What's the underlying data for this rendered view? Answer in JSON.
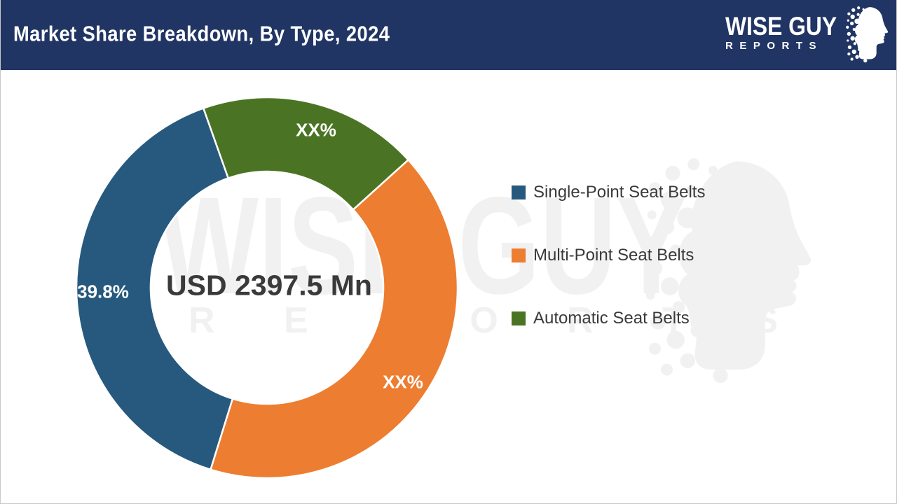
{
  "header": {
    "title": "Market Share Breakdown, By Type, 2024",
    "logo": {
      "name": "WISE GUY",
      "subtitle": "REPORTS"
    }
  },
  "chart_data": {
    "type": "pie",
    "subtype": "donut",
    "title": "Market Share Breakdown, By Type, 2024",
    "center_label": "USD 2397.5 Mn",
    "units": "percent share",
    "start_angle_deg": 109.5,
    "direction": "clockwise",
    "inner_radius_ratio": 0.61,
    "legend_position": "right",
    "segments": [
      {
        "label": "Automatic Seat Belts",
        "value_pct": 18.7,
        "display_label": "XX%",
        "color": "#4a7423"
      },
      {
        "label": "Multi-Point Seat Belts",
        "value_pct": 41.5,
        "display_label": "XX%",
        "color": "#ed7d31"
      },
      {
        "label": "Single-Point Seat Belts",
        "value_pct": 39.8,
        "display_label": "39.8%",
        "color": "#26597d"
      }
    ]
  },
  "legend": {
    "items": [
      {
        "label": "Single-Point Seat Belts",
        "color": "#26597d"
      },
      {
        "label": "Multi-Point Seat Belts",
        "color": "#ed7d31"
      },
      {
        "label": "Automatic Seat Belts",
        "color": "#4a7423"
      }
    ]
  },
  "watermark": {
    "line1": "WISE GUY",
    "line2": "R E P O R T S"
  },
  "colors": {
    "header_bg": "#213564",
    "text_dark": "#3a3a3a",
    "segment_label": "#ffffff",
    "watermark": "#f1f1f2",
    "page_border": "#c9c9c9"
  }
}
